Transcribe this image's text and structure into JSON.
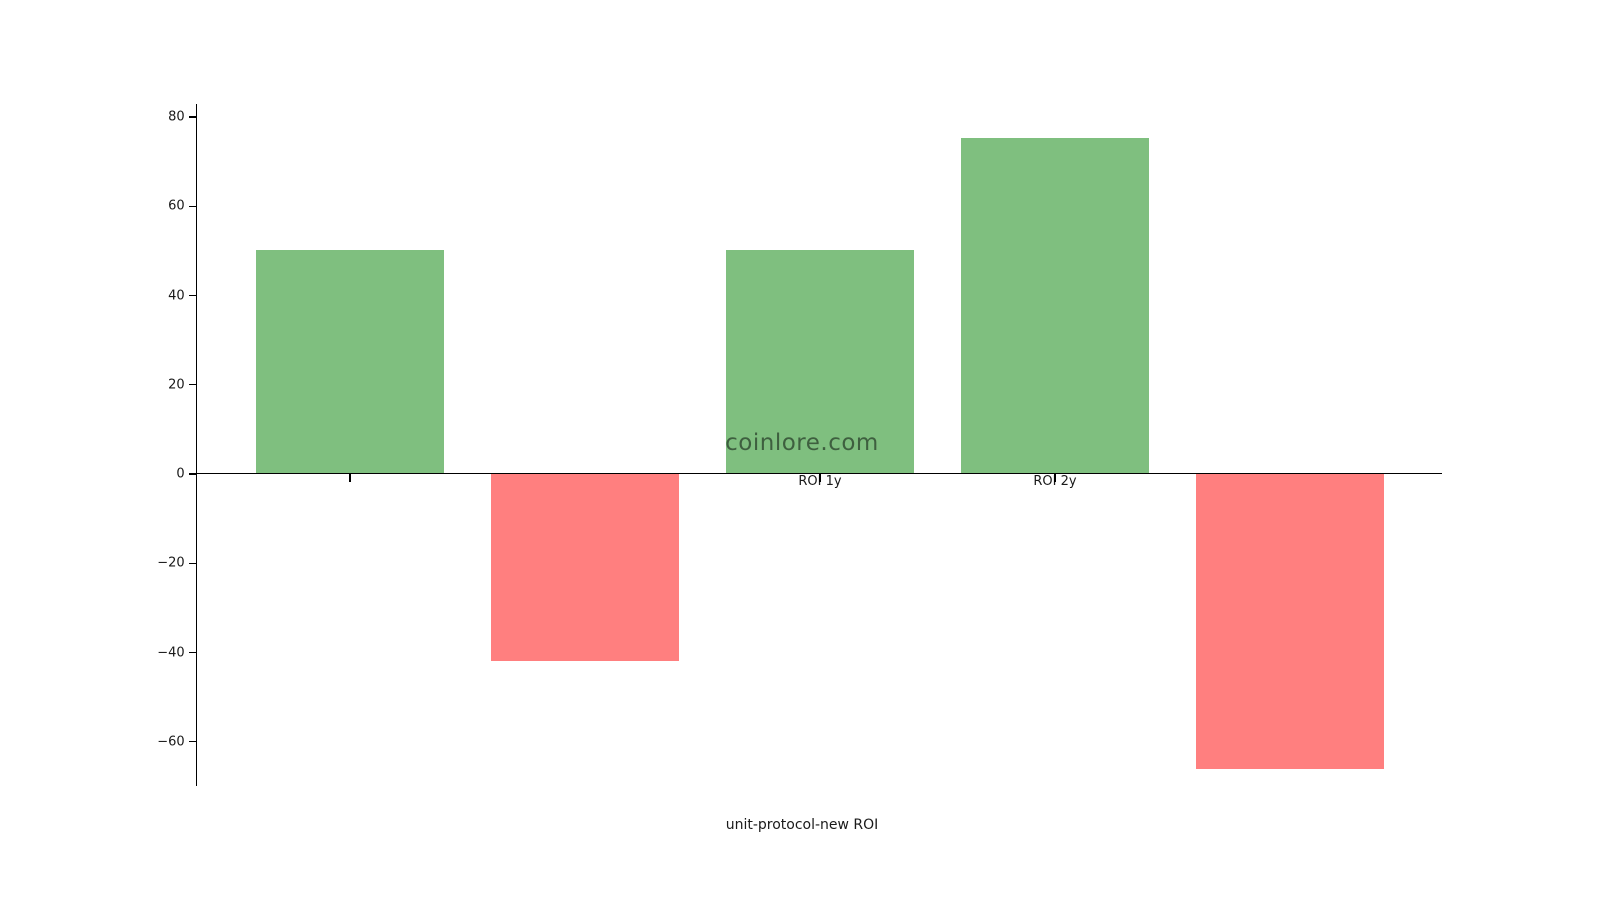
{
  "page": {
    "background_color": "#ffffff"
  },
  "chart_data": {
    "type": "bar",
    "title": "unit-protocol-new ROI",
    "watermark": "coinlore.com",
    "categories": [
      "",
      "",
      "ROI 1y",
      "ROI 2y",
      ""
    ],
    "values": [
      50,
      -42,
      50,
      75,
      -66
    ],
    "series": [
      {
        "name": "ROI",
        "values": [
          50,
          -42,
          50,
          75,
          -66
        ]
      }
    ],
    "xtick_visible_indices": [
      0,
      2,
      3
    ],
    "yticks": [
      80,
      60,
      40,
      20,
      0,
      -20,
      -40,
      -60
    ],
    "ylim": [
      -70,
      83
    ],
    "xlabel": "",
    "ylabel": "",
    "grid": false,
    "legend_position": "none",
    "positive_color": "#7fbf7f",
    "negative_color": "#ff7f7f",
    "axis_color": "#000000",
    "tick_text_color": "#1a1a1a"
  }
}
